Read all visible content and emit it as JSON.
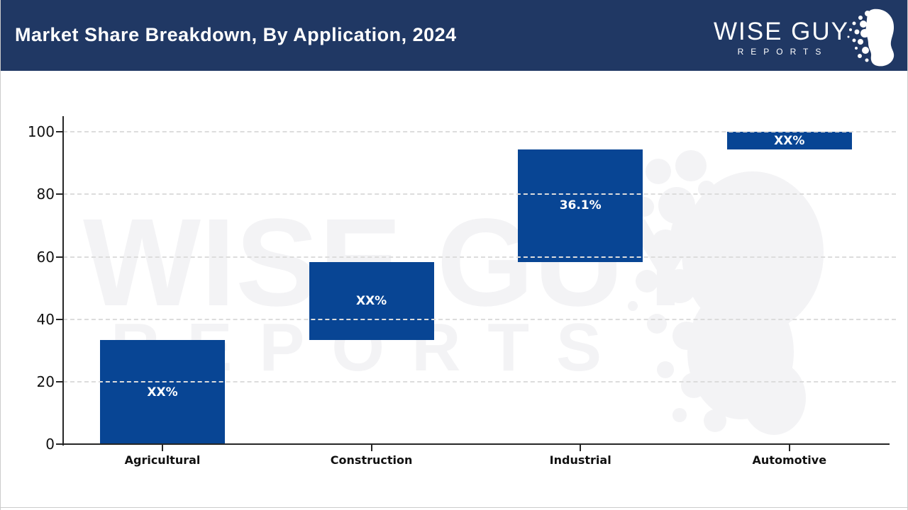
{
  "header": {
    "title": "Market Share Breakdown, By Application, 2024",
    "logo": {
      "line1": "WISE GUY",
      "line2": "REPORTS"
    }
  },
  "watermark": {
    "line1": "WISE GUY",
    "line2": "REPORTS"
  },
  "chart_data": {
    "type": "bar",
    "subtype": "waterfall",
    "title": "Market Share Breakdown, By Application, 2024",
    "categories": [
      "Agricultural",
      "Construction",
      "Industrial",
      "Automotive"
    ],
    "segments": [
      {
        "category": "Agricultural",
        "start": 0,
        "end": 33.3,
        "label": "XX%"
      },
      {
        "category": "Construction",
        "start": 33.3,
        "end": 58.3,
        "label": "XX%"
      },
      {
        "category": "Industrial",
        "start": 58.3,
        "end": 94.4,
        "label": "36.1%"
      },
      {
        "category": "Automotive",
        "start": 94.4,
        "end": 100,
        "label": "XX%"
      }
    ],
    "xlabel": "",
    "ylabel": "",
    "yticks": [
      0,
      20,
      40,
      60,
      80,
      100
    ],
    "ylim": [
      0,
      105
    ],
    "grid": "horizontal-dashed",
    "legend": "none",
    "bar_color": "#084594"
  },
  "colors": {
    "header_bg": "#203864",
    "bar_blue": "#084594",
    "grid_dash": "#dcdcdc",
    "axis": "#262626",
    "watermark": "#f3f3f5",
    "frame_hairline": "#cccccc"
  }
}
